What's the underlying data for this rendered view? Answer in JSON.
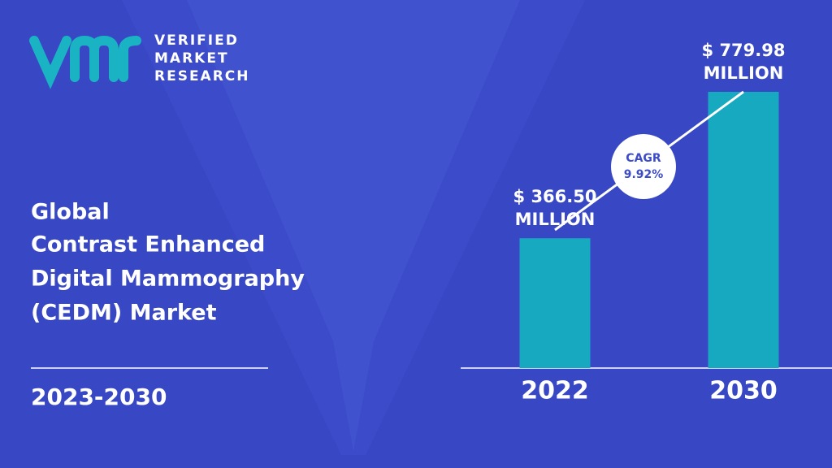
{
  "logo": {
    "lines": [
      "VERIFIED",
      "MARKET",
      "RESEARCH"
    ]
  },
  "title_lines": [
    "Global",
    "Contrast Enhanced",
    "Digital Mammography",
    "(CEDM) Market"
  ],
  "period": "2023-2030",
  "chart_data": {
    "type": "bar",
    "categories": [
      "2022",
      "2030"
    ],
    "values": [
      366.5,
      779.98
    ],
    "value_labels": [
      "$ 366.50 MILLION",
      "$ 779.98 MILLION"
    ],
    "color": "#17a9bf",
    "annotations": [
      "CAGR",
      "9.92%"
    ]
  }
}
